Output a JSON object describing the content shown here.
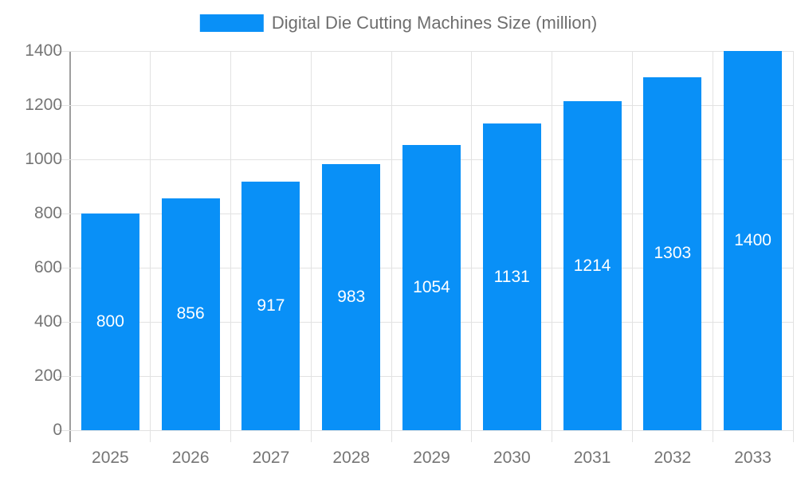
{
  "legend": {
    "label": "Digital Die Cutting Machines Size (million)"
  },
  "colors": {
    "bar": "#0990f7",
    "gridline": "#e2e2e2",
    "axis_line": "#9e9e9e",
    "tick_label_text": "#757575",
    "legend_text": "#6e6e6e",
    "value_label_text": "#ffffff",
    "background": "#ffffff"
  },
  "chart_data": {
    "type": "bar",
    "title": "Digital Die Cutting Machines Size (million)",
    "series_name": "Digital Die Cutting Machines Size (million)",
    "categories": [
      "2025",
      "2026",
      "2027",
      "2028",
      "2029",
      "2030",
      "2031",
      "2032",
      "2033"
    ],
    "values": [
      800,
      856,
      917,
      983,
      1054,
      1131,
      1214,
      1303,
      1400
    ],
    "xlabel": "",
    "ylabel": "",
    "ylim": [
      0,
      1400
    ],
    "ytick_step": 200,
    "yticks": [
      0,
      200,
      400,
      600,
      800,
      1000,
      1200,
      1400
    ],
    "grid": true,
    "legend_position": "top-center",
    "value_labels": "inside-center-white"
  }
}
